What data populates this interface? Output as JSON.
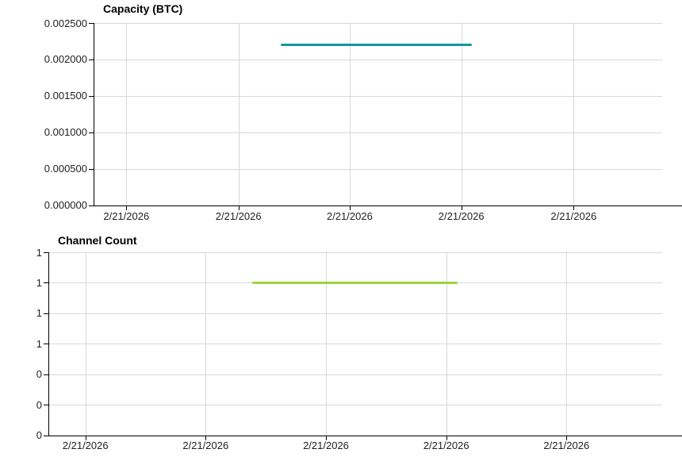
{
  "colors": {
    "background": "#ffffff",
    "grid": "#d9d9d9",
    "axis": "#000000",
    "tick_text": "#1f1f1f",
    "title_text": "#000000",
    "capacity_line": "#1296a4",
    "channel_line": "#9cd53c"
  },
  "charts": [
    {
      "id": "capacity",
      "title": "Capacity (BTC)",
      "line_color": "#1296a4",
      "value": 0.0022,
      "ylim": [
        0,
        0.0025
      ],
      "y_tick_labels": [
        "0.002500",
        "0.002000",
        "0.001500",
        "0.001000",
        "0.000500",
        "0.000000"
      ],
      "x_tick_labels": [
        "2/21/2026",
        "2/21/2026",
        "2/21/2026",
        "2/21/2026",
        "2/21/2026"
      ]
    },
    {
      "id": "channel",
      "title": "Channel Count",
      "line_color": "#9cd53c",
      "value": 1,
      "ylim": [
        0,
        1.2
      ],
      "y_tick_labels": [
        "1",
        "1",
        "1",
        "1",
        "0",
        "0",
        "0"
      ],
      "x_tick_labels": [
        "2/21/2026",
        "2/21/2026",
        "2/21/2026",
        "2/21/2026",
        "2/21/2026"
      ]
    }
  ],
  "chart_data": [
    {
      "type": "line",
      "title": "Capacity (BTC)",
      "x": [
        "2/21/2026",
        "2/21/2026",
        "2/21/2026",
        "2/21/2026",
        "2/21/2026"
      ],
      "series": [
        {
          "name": "Capacity (BTC)",
          "values": [
            0.0022,
            0.0022
          ],
          "color": "#1296a4"
        }
      ],
      "xlabel": "",
      "ylabel": "",
      "ylim": [
        0,
        0.0025
      ],
      "y_ticks": [
        0.0025,
        0.002,
        0.0015,
        0.001,
        0.0005,
        0
      ],
      "grid": true,
      "legend": false,
      "note": "Flat horizontal line at 0.0022 spanning only the middle of the x-range (from ~1.4 to ~3.1 tick-intervals after the first x tick)"
    },
    {
      "type": "line",
      "title": "Channel Count",
      "x": [
        "2/21/2026",
        "2/21/2026",
        "2/21/2026",
        "2/21/2026",
        "2/21/2026"
      ],
      "series": [
        {
          "name": "Channel Count",
          "values": [
            1,
            1
          ],
          "color": "#9cd53c"
        }
      ],
      "xlabel": "",
      "ylabel": "",
      "ylim": [
        0,
        1.2
      ],
      "y_ticks": [
        1.2,
        1.0,
        0.8,
        0.6,
        0.4,
        0.2,
        0
      ],
      "y_tick_labels_displayed": [
        "1",
        "1",
        "1",
        "1",
        "0",
        "0",
        "0"
      ],
      "grid": true,
      "legend": false,
      "note": "Flat horizontal line at value 1 spanning only the middle of the x-range; tick labels are fractional values rounded to integers"
    }
  ]
}
